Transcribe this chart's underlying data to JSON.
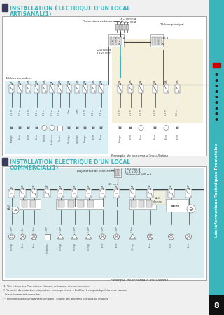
{
  "bg_color": "#f0f0f0",
  "page_bg": "#f0f0f0",
  "teal_color": "#3ab5bb",
  "title_teal": "#3ab5bb",
  "dark_sq_color": "#3a3a5c",
  "title1_line1": "INSTALLATION ÉLECTRIQUE D’UN LOCAL",
  "title1_line2": "ARTISANAL(1)",
  "title2_line1": "INSTALLATION ÉLECTRIQUE D’UN LOCAL",
  "title2_line2": "COMMERCIAL(1)",
  "caption": "Exemple de schéma d’installation",
  "footer_line1": "(1) Voir mémentos Promotelec: «llocaux artisanaux et commerciaux».",
  "footer_line2": " * Dispositif de protection (disjoncteur ou coupe-circuit à fusibles) à coupure bipolaire pour assurer",
  "footer_line3": "   la sectionnement du neutre.",
  "footer_line4": " ** Recommandé pour la protection dans l’emploi des appareils portatifs ou mobiles.",
  "sidebar_text": "Les Informations Techniques Promotelec",
  "sidebar_num": "8",
  "sidebar_teal": "#3ab5bb",
  "sidebar_black": "#111111",
  "dot_color": "#555555",
  "red_sq": "#cc0000",
  "diagram1_bg": "#e8f0e8",
  "diagram1_beige": "#f5f0dc",
  "diagram1_blue": "#daeef5",
  "diagram2_bg": "#d8ecf0",
  "schematic_line": "#444444",
  "breaker_color": "#555555",
  "text_color": "#333333",
  "wire_color": "#444455"
}
